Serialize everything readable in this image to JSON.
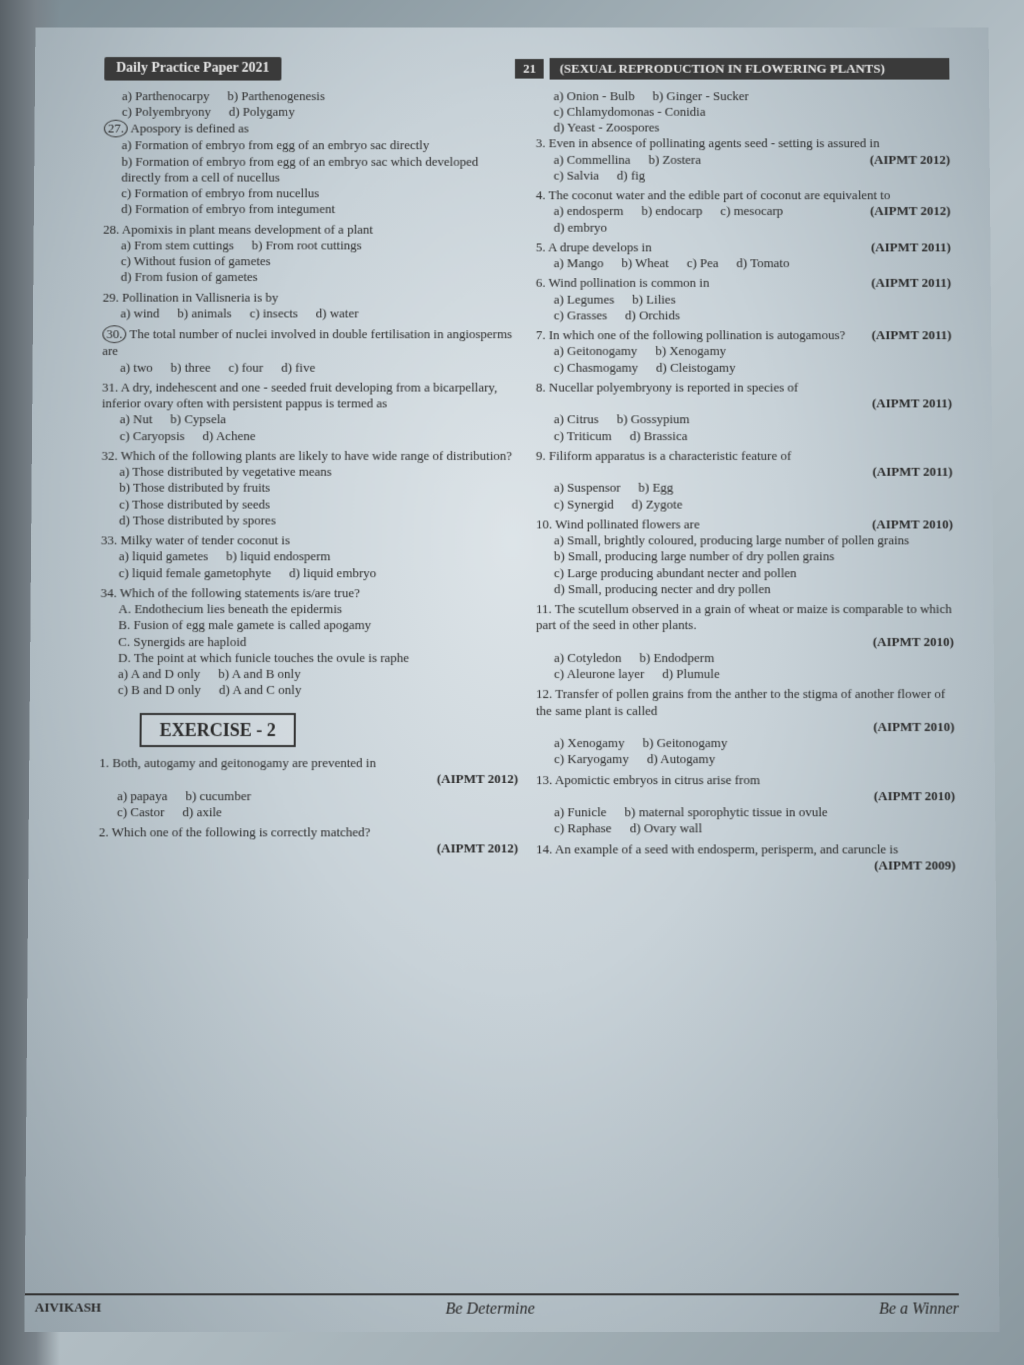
{
  "header": {
    "left": "Daily Practice Paper 2021",
    "num": "21",
    "right": "(SEXUAL REPRODUCTION IN FLOWERING PLANTS)"
  },
  "exercise_title": "EXERCISE - 2",
  "footer": {
    "left": "AIVIKASH",
    "center": "Be Determine",
    "right": "Be a Winner"
  },
  "left_col": {
    "top_opts": {
      "a": "a) Parthenocarpy",
      "b": "b) Parthenogenesis",
      "c": "c) Polyembryony",
      "d": "d) Polygamy"
    },
    "q27": {
      "num": "27.",
      "text": "Apospory is defined as",
      "a": "a) Formation of embryo from egg of an embryo sac directly",
      "b": "b) Formation of embryo from egg of an embryo sac which developed directly from a cell of nucellus",
      "c": "c) Formation of embryo from nucellus",
      "d": "d) Formation of embryo from integument"
    },
    "q28": {
      "num": "28.",
      "text": "Apomixis in plant means development of a plant",
      "a": "a) From stem cuttings",
      "b": "b) From root cuttings",
      "c": "c) Without fusion of gametes",
      "d": "d) From fusion of gametes"
    },
    "q29": {
      "num": "29.",
      "text": "Pollination in Vallisneria is by",
      "a": "a) wind",
      "b": "b) animals",
      "c": "c) insects",
      "d": "d) water"
    },
    "q30": {
      "num": "30.",
      "text": "The total number of nuclei involved in double fertilisation in angiosperms are",
      "a": "a) two",
      "b": "b) three",
      "c": "c) four",
      "d": "d) five"
    },
    "q31": {
      "num": "31.",
      "text": "A dry, indehescent and one - seeded fruit developing from a bicarpellary, inferior ovary often with persistent pappus is termed as",
      "a": "a) Nut",
      "b": "b) Cypsela",
      "c": "c) Caryopsis",
      "d": "d) Achene"
    },
    "q32": {
      "num": "32.",
      "text": "Which of the following plants are likely to have wide range of distribution?",
      "a": "a) Those distributed by vegetative means",
      "b": "b) Those distributed by fruits",
      "c": "c) Those distributed by seeds",
      "d": "d) Those distributed by spores"
    },
    "q33": {
      "num": "33.",
      "text": "Milky water of tender coconut is",
      "a": "a) liquid gametes",
      "b": "b) liquid endosperm",
      "c": "c) liquid female gametophyte",
      "d": "d) liquid embryo"
    },
    "q34": {
      "num": "34.",
      "text": "Which of the following statements is/are true?",
      "A": "A. Endothecium lies beneath the epidermis",
      "B": "B. Fusion of egg male gamete is called apogamy",
      "C": "C. Synergids are haploid",
      "D": "D. The point at which funicle touches the ovule is raphe",
      "a": "a) A and D only",
      "b": "b) A and B only",
      "c": "c) B and D only",
      "d": "d) A and C only"
    },
    "ex1": {
      "num": "1.",
      "text": "Both, autogamy and geitonogamy are prevented in",
      "tag": "(AIPMT 2012)",
      "a": "a) papaya",
      "b": "b) cucumber",
      "c": "c) Castor",
      "d": "d) axile"
    },
    "ex2": {
      "num": "2.",
      "text": "Which one of the following is correctly matched?",
      "tag": "(AIPMT 2012)"
    }
  },
  "right_col": {
    "top_opts": {
      "a": "a) Onion - Bulb",
      "b": "b) Ginger - Sucker",
      "c": "c) Chlamydomonas - Conidia",
      "d": "d) Yeast - Zoospores"
    },
    "q3": {
      "num": "3.",
      "text": "Even in absence of pollinating agents seed - setting is assured in",
      "tag": "(AIPMT 2012)",
      "a": "a) Commellina",
      "b": "b) Zostera",
      "c": "c) Salvia",
      "d": "d) fig"
    },
    "q4": {
      "num": "4.",
      "text": "The coconut water and the edible part of coconut are equivalent to",
      "tag": "(AIPMT 2012)",
      "a": "a) endosperm",
      "b": "b) endocarp",
      "c": "c) mesocarp",
      "d": "d) embryo"
    },
    "q5": {
      "num": "5.",
      "text": "A drupe develops in",
      "tag": "(AIPMT 2011)",
      "a": "a) Mango",
      "b": "b) Wheat",
      "c": "c) Pea",
      "d": "d) Tomato"
    },
    "q6": {
      "num": "6.",
      "text": "Wind pollination is common in",
      "tag": "(AIPMT 2011)",
      "a": "a) Legumes",
      "b": "b) Lilies",
      "c": "c) Grasses",
      "d": "d) Orchids"
    },
    "q7": {
      "num": "7.",
      "text": "In which one of the following pollination is autogamous?",
      "tag": "(AIPMT 2011)",
      "a": "a) Geitonogamy",
      "b": "b) Xenogamy",
      "c": "c) Chasmogamy",
      "d": "d) Cleistogamy"
    },
    "q8": {
      "num": "8.",
      "text": "Nucellar polyembryony is reported in species of",
      "tag": "(AIPMT 2011)",
      "a": "a) Citrus",
      "b": "b) Gossypium",
      "c": "c) Triticum",
      "d": "d) Brassica"
    },
    "q9": {
      "num": "9.",
      "text": "Filiform apparatus is a characteristic feature of",
      "tag": "(AIPMT 2011)",
      "a": "a) Suspensor",
      "b": "b) Egg",
      "c": "c) Synergid",
      "d": "d) Zygote"
    },
    "q10": {
      "num": "10.",
      "text": "Wind pollinated flowers are",
      "tag": "(AIPMT 2010)",
      "a": "a) Small, brightly coloured, producing large number of pollen grains",
      "b": "b) Small, producing large number of dry pollen grains",
      "c": "c) Large producing abundant necter and pollen",
      "d": "d) Small, producing necter and dry pollen"
    },
    "q11": {
      "num": "11.",
      "text": "The scutellum observed in a grain of wheat or maize is comparable to which part of the seed in other plants.",
      "tag": "(AIPMT 2010)",
      "a": "a) Cotyledon",
      "b": "b) Endodperm",
      "c": "c) Aleurone layer",
      "d": "d) Plumule"
    },
    "q12": {
      "num": "12.",
      "text": "Transfer of pollen grains from the anther to the stigma of another flower of the same plant is called",
      "tag": "(AIPMT 2010)",
      "a": "a) Xenogamy",
      "b": "b) Geitonogamy",
      "c": "c) Karyogamy",
      "d": "d) Autogamy"
    },
    "q13": {
      "num": "13.",
      "text": "Apomictic embryos in citrus arise from",
      "tag": "(AIPMT 2010)",
      "a": "a) Funicle",
      "b": "b) maternal sporophytic tissue in ovule",
      "c": "c) Raphase",
      "d": "d) Ovary wall"
    },
    "q14": {
      "num": "14.",
      "text": "An example of a seed with endosperm, perisperm, and caruncle is",
      "tag": "(AIPMT 2009)"
    }
  }
}
